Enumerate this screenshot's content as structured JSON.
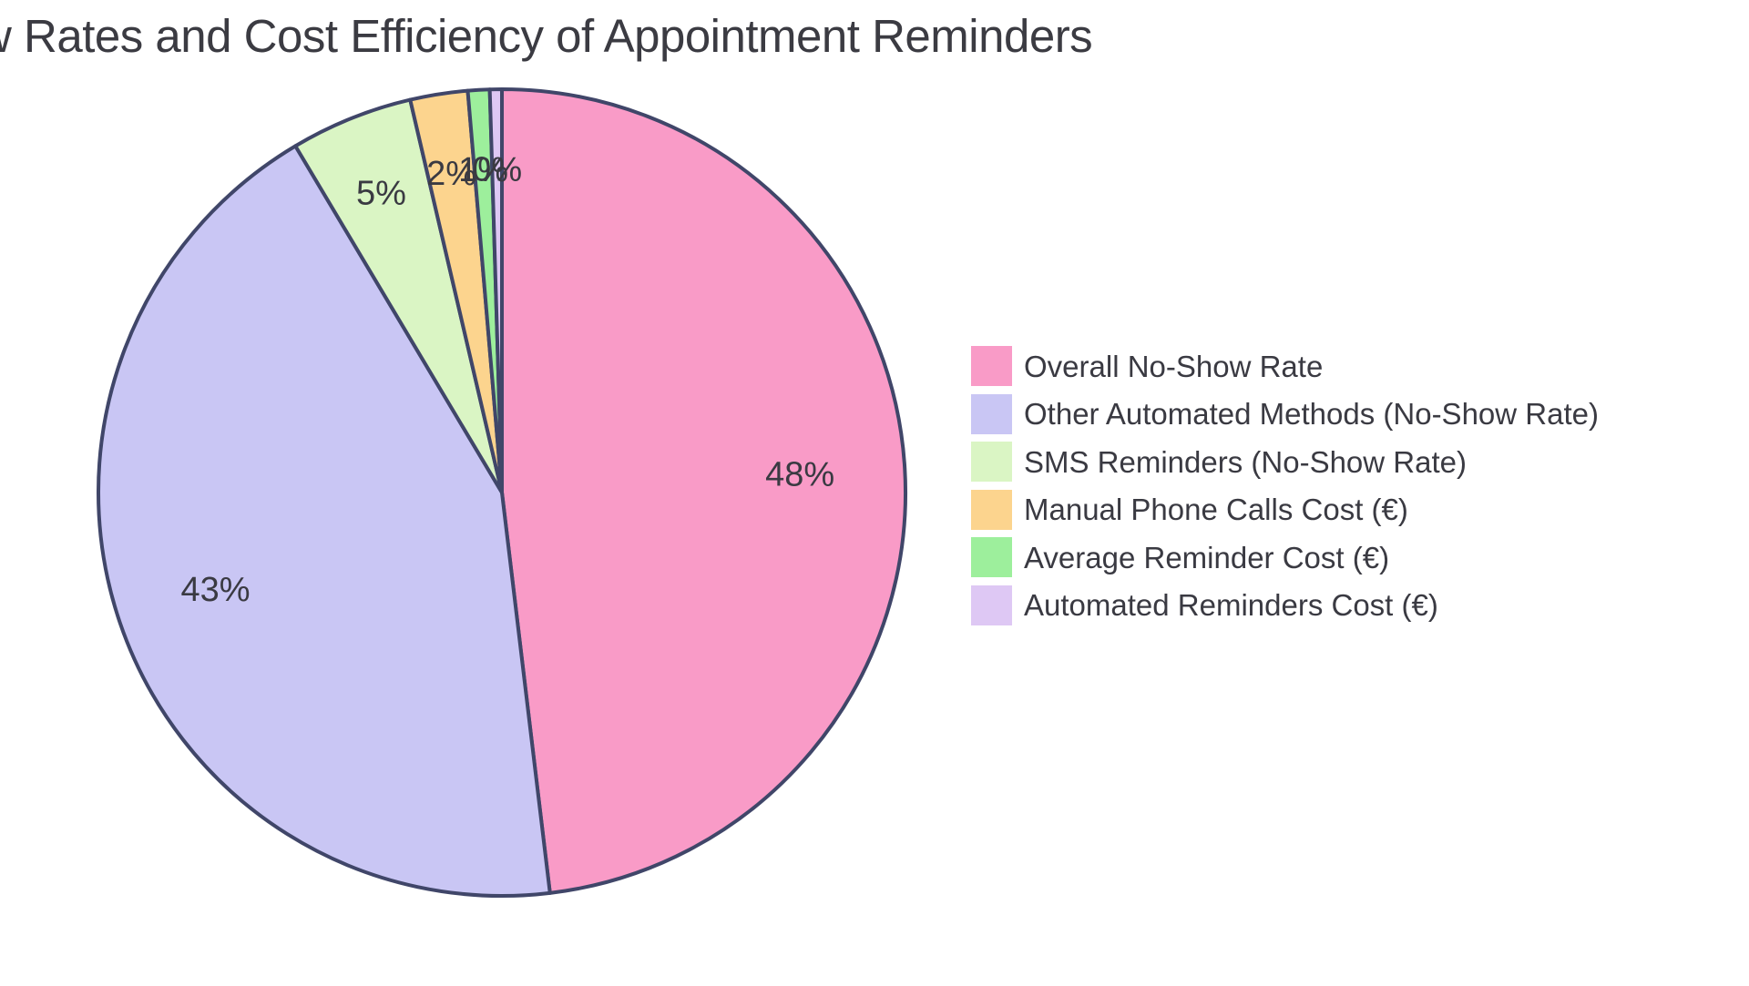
{
  "page": {
    "background": "#FFFFFF"
  },
  "title": {
    "text": "w Rates and Cost Efficiency of Appointment Reminders",
    "color": "#3B3B42"
  },
  "chart_data": {
    "type": "pie",
    "title_visible_text": "w Rates and Cost Efficiency of Appointment Reminders",
    "legend_position": "right",
    "percent_labels_shown": true,
    "start_angle": "12-oclock-clockwise",
    "outline_color": "#404669",
    "label_color": "#3A3A42",
    "slices": [
      {
        "label": "Overall No-Show Rate",
        "pct_label": "48%",
        "percent": 48,
        "color": "#F99BC7",
        "sweep_fraction": 0.481,
        "label_r_fraction": 0.74
      },
      {
        "label": "Other Automated Methods (No-Show Rate)",
        "pct_label": "43%",
        "percent": 43,
        "color": "#C9C6F4",
        "sweep_fraction": 0.4335,
        "label_r_fraction": 0.75
      },
      {
        "label": "SMS Reminders (No-Show Rate)",
        "pct_label": "5%",
        "percent": 5,
        "color": "#DAF5C4",
        "sweep_fraction": 0.049,
        "label_r_fraction": 0.8
      },
      {
        "label": "Manual Phone Calls Cost (€)",
        "pct_label": "2%",
        "percent": 2,
        "color": "#FCD48E",
        "sweep_fraction": 0.023,
        "label_r_fraction": 0.8
      },
      {
        "label": "Average Reminder Cost (€)",
        "pct_label": "1%",
        "percent": 1,
        "color": "#9DEF9C",
        "sweep_fraction": 0.0087,
        "label_r_fraction": 0.8
      },
      {
        "label": "Automated Reminders Cost (€)",
        "pct_label": "0%",
        "percent": 0,
        "color": "#DEC8F4",
        "sweep_fraction": 0.0048,
        "label_r_fraction": 0.8
      }
    ]
  }
}
